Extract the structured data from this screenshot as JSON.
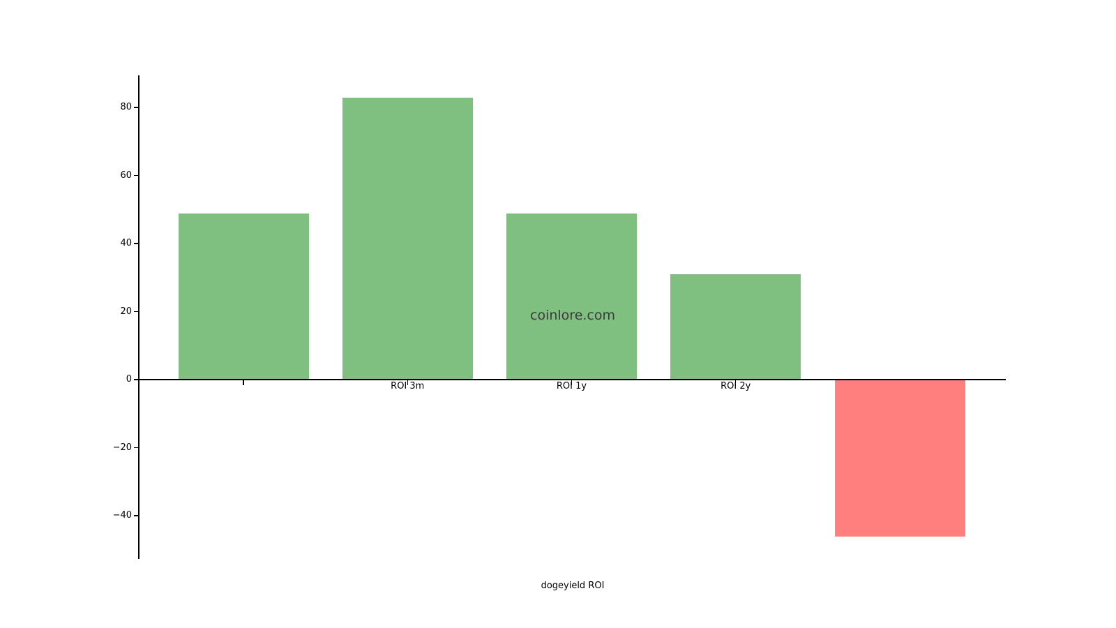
{
  "page": {
    "background": "#ffffff"
  },
  "chart_data": {
    "type": "bar",
    "title": "dogeyield ROI",
    "xlabel": "dogeyield ROI",
    "ylabel": "",
    "watermark": "coinlore.com",
    "categories": [
      "",
      "ROI 3m",
      "ROI 1y",
      "ROI 2y",
      ""
    ],
    "values": [
      48.8,
      82.9,
      48.8,
      31.0,
      -46.2
    ],
    "bar_colors": [
      "#7fbf7f",
      "#7fbf7f",
      "#7fbf7f",
      "#7fbf7f",
      "#ff7f7f"
    ],
    "positive_color": "#7fbf7f",
    "negative_color": "#ff7f7f",
    "yticks": [
      80,
      60,
      40,
      20,
      0,
      -20,
      -40
    ],
    "ytick_labels": [
      "80",
      "60",
      "40",
      "20",
      "0",
      "−20",
      "−40"
    ],
    "xtick_visible": [
      true,
      true,
      true,
      true,
      false
    ],
    "ylim": [
      -52.7,
      89.4
    ],
    "grid": false,
    "legend": null,
    "axis_color": "#000000",
    "text_color": "#000000",
    "watermark_color": "#3b3b3b"
  }
}
